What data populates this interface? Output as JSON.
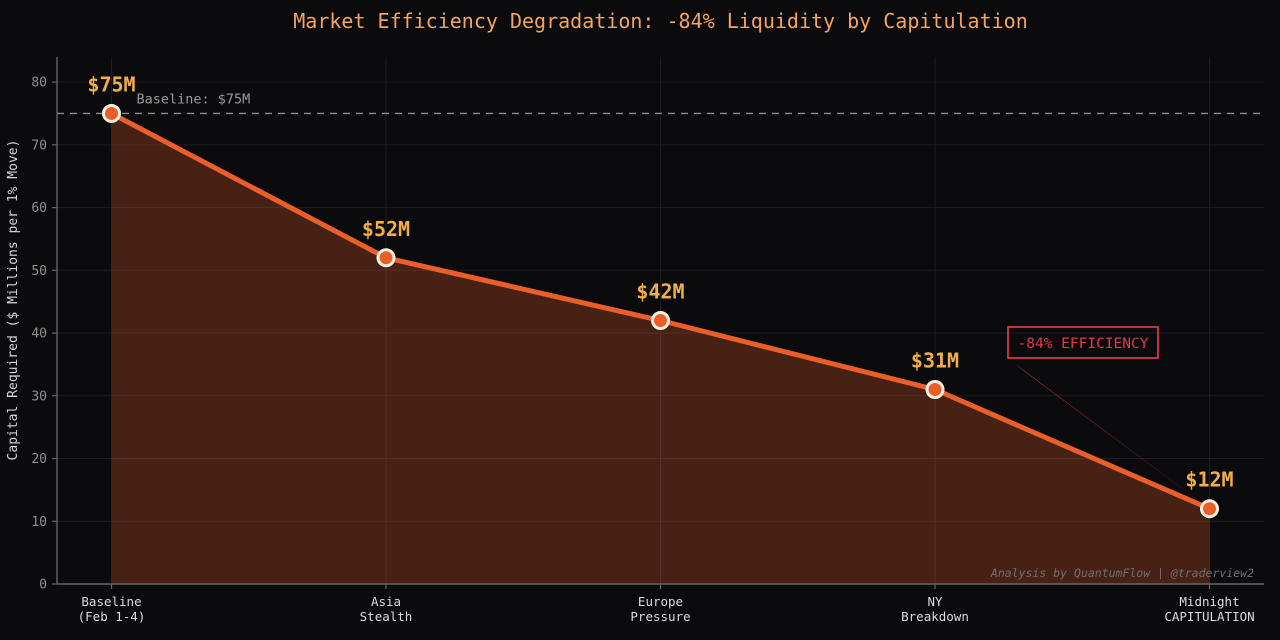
{
  "figure": {
    "title": "Market Efficiency Degradation: -84% Liquidity by Capitulation",
    "watermark": "Analysis by QuantumFlow | @traderview2"
  },
  "chart_data": {
    "type": "line",
    "title": "Market Efficiency Degradation: -84% Liquidity by Capitulation",
    "xlabel": "",
    "ylabel": "Capital Required ($ Millions per 1% Move)",
    "categories": [
      "Baseline\n(Feb 1-4)",
      "Asia\nStealth",
      "Europe\nPressure",
      "NY\nBreakdown",
      "Midnight\nCAPITULATION"
    ],
    "values": [
      75,
      52,
      42,
      31,
      12
    ],
    "point_labels": [
      "$75M",
      "$52M",
      "$42M",
      "$31M",
      "$12M"
    ],
    "yticks": [
      "0",
      "10",
      "20",
      "30",
      "40",
      "50",
      "60",
      "70",
      "80"
    ],
    "ytick_values": [
      0,
      10,
      20,
      30,
      40,
      50,
      60,
      70,
      80
    ],
    "ylim": [
      0,
      84
    ],
    "grid": true,
    "area_fill": true,
    "legend": "none",
    "baseline": {
      "value": 75,
      "label": "Baseline: $75M",
      "style": "dashed"
    },
    "annotation": {
      "label": "-84% EFFICIENCY",
      "points_to_category": "Midnight\nCAPITULATION",
      "points_to_value": 12
    },
    "watermark": "Analysis by QuantumFlow | @traderview2"
  },
  "colors": {
    "background": "#0b0b0d",
    "title": "#f4a460",
    "line": "#ea5e29",
    "area_fill": "#ea5e29",
    "marker_fill": "#ea5e29",
    "marker_edge": "#f7f0e1",
    "point_label": "#f2ae47",
    "baseline_dash": "#8f8f8f",
    "baseline_text": "#9a9a9a",
    "annotation_red": "#dd3a4e",
    "grid": "#1d1d20",
    "spine": "#66666a",
    "ytick_text": "#8f8f8f",
    "xtick_text": "#dcdcdc",
    "ylabel_text": "#d6d6d6",
    "watermark_text": "#6f6f6f"
  }
}
